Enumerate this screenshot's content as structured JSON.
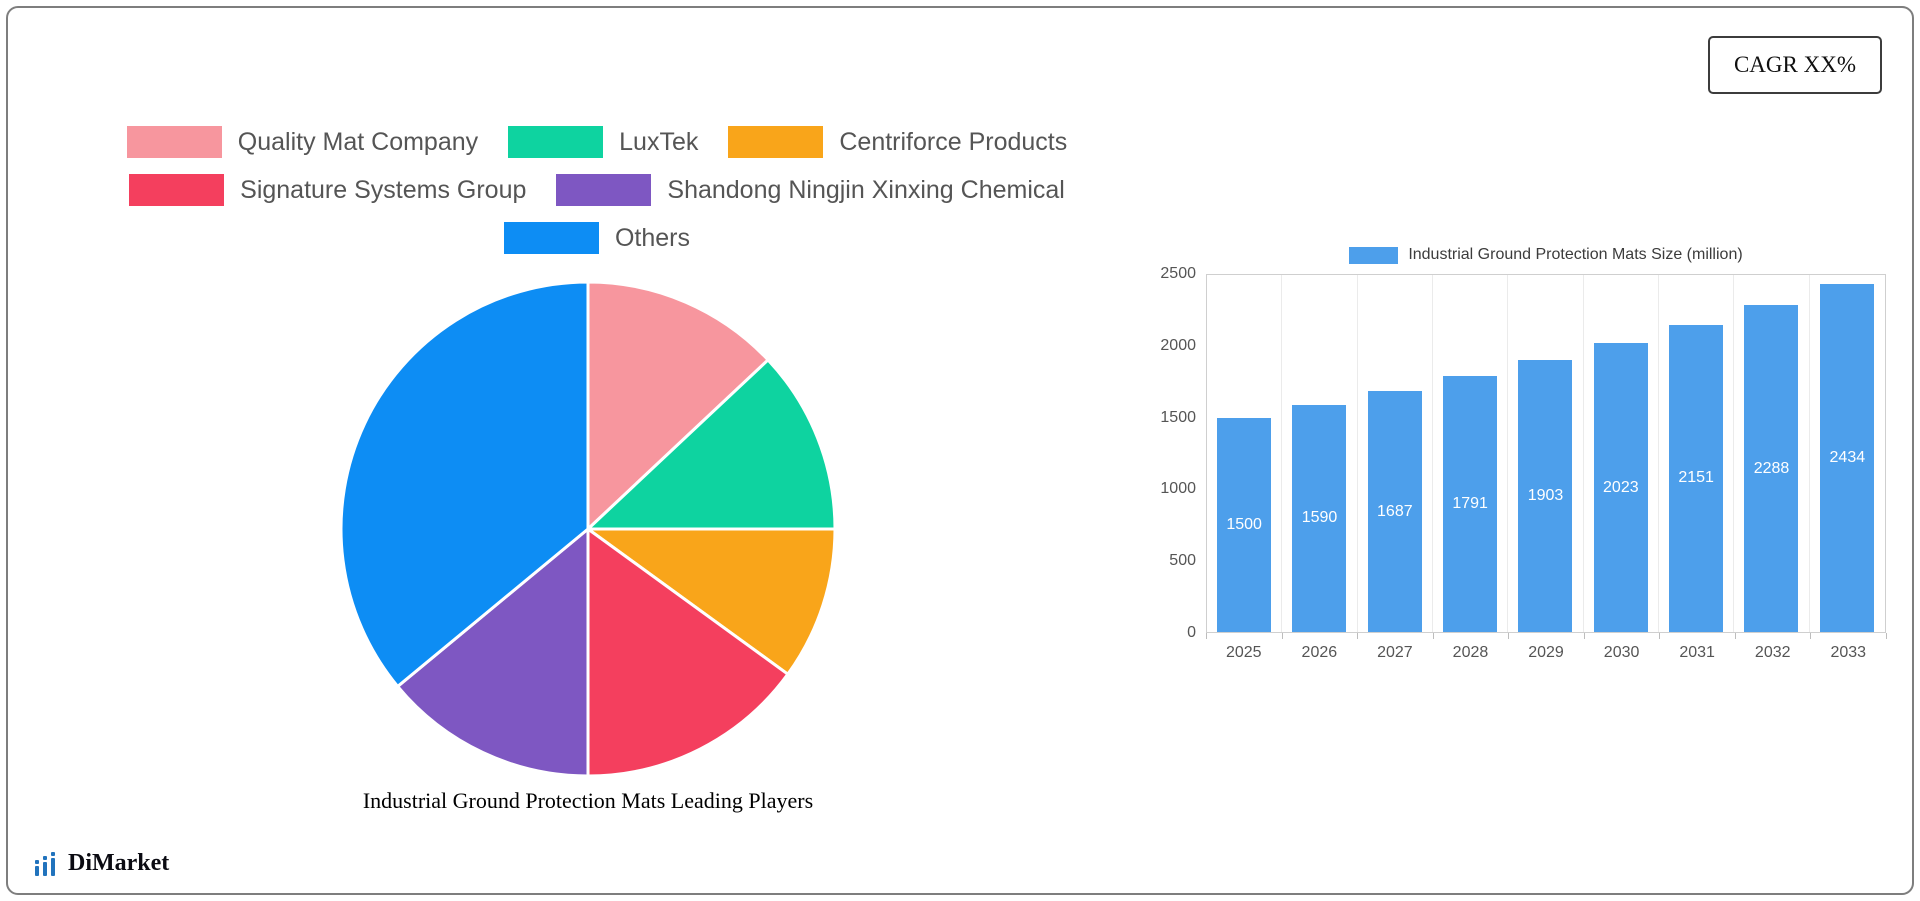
{
  "cagr": {
    "label": "CAGR XX%"
  },
  "logo": {
    "text": "DiMarket",
    "icon": "bar-chart-icon",
    "icon_color": "#2173bd"
  },
  "chart_data": [
    {
      "type": "pie",
      "title": "Industrial Ground Protection Mats Leading Players",
      "legend_position": "top",
      "stroke_color": "#ffffff",
      "slices": [
        {
          "label": "Quality Mat Company",
          "value": 13,
          "color": "#f7969e"
        },
        {
          "label": "LuxTek",
          "value": 12,
          "color": "#0ed3a0"
        },
        {
          "label": "Centriforce Products",
          "value": 10,
          "color": "#f9a51a"
        },
        {
          "label": "Signature Systems Group",
          "value": 15,
          "color": "#f43f5e"
        },
        {
          "label": "Shandong Ningjin Xinxing Chemical",
          "value": 14,
          "color": "#7e57c2"
        },
        {
          "label": "Others",
          "value": 36,
          "color": "#0d8df4"
        }
      ]
    },
    {
      "type": "bar",
      "series_label": "Industrial Ground Protection Mats Size (million)",
      "categories": [
        "2025",
        "2026",
        "2027",
        "2028",
        "2029",
        "2030",
        "2031",
        "2032",
        "2033"
      ],
      "values": [
        1500,
        1590,
        1687,
        1791,
        1903,
        2023,
        2151,
        2288,
        2434
      ],
      "bar_color": "#4d9feb",
      "value_label_color": "#ffffff",
      "ylim": [
        0,
        2500
      ],
      "yticks": [
        0,
        500,
        1000,
        1500,
        2000,
        2500
      ],
      "legend_position": "top",
      "grid": "vertical-separators"
    }
  ]
}
